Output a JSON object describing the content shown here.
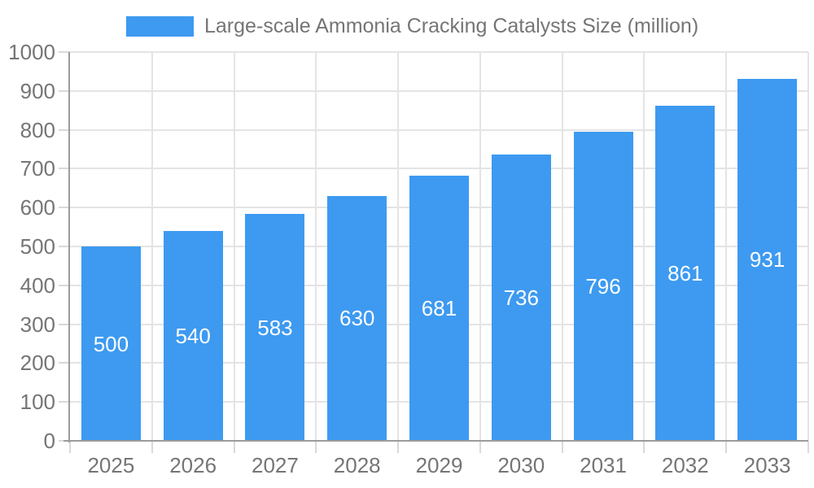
{
  "chart_data": {
    "type": "bar",
    "title": "Large-scale Ammonia Cracking Catalysts Size (million)",
    "categories": [
      "2025",
      "2026",
      "2027",
      "2028",
      "2029",
      "2030",
      "2031",
      "2032",
      "2033"
    ],
    "values": [
      500,
      540,
      583,
      630,
      681,
      736,
      796,
      861,
      931
    ],
    "xlabel": "",
    "ylabel": "",
    "ylim": [
      0,
      1000
    ],
    "ytick_step": 100,
    "grid": true,
    "legend_position": "top",
    "colors": {
      "bar": "#3d9af0",
      "value_label": "#ffffff",
      "axis_text": "#757575",
      "axis_line": "#9c9c9c",
      "gridline": "#e4e4e4",
      "tick": "#d9d9d9",
      "background": "#ffffff"
    }
  }
}
